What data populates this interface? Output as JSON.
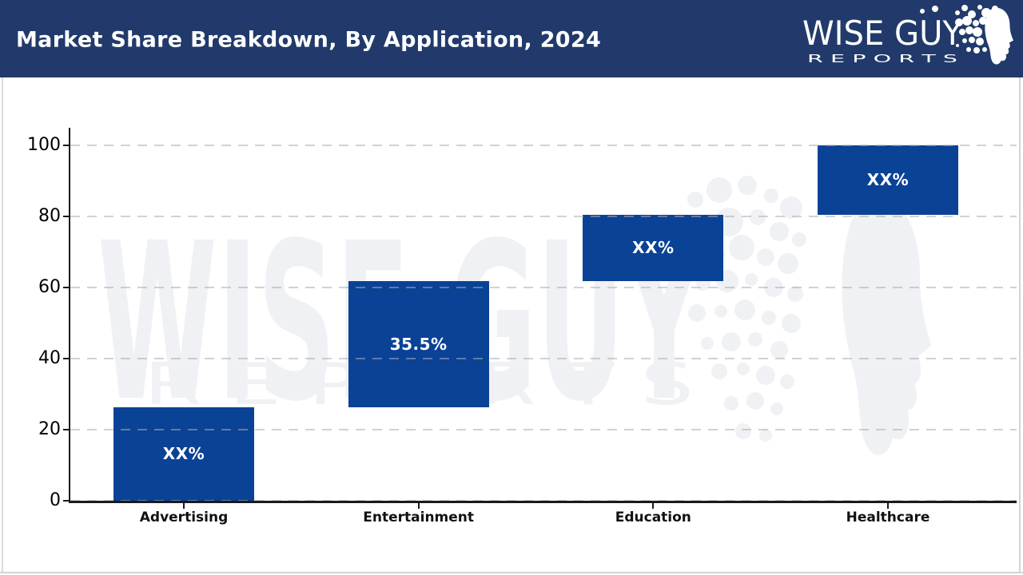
{
  "header": {
    "title": "Market Share Breakdown, By Application, 2024"
  },
  "logo": {
    "line1": "WISE GUY",
    "line2": "R E P O R T S"
  },
  "watermark": {
    "line1": "WISE GUY",
    "line2": "R E P O R T S"
  },
  "chart_data": {
    "type": "bar",
    "subtype": "waterfall",
    "title": "Market Share Breakdown, By Application, 2024",
    "categories": [
      "Advertising",
      "Entertainment",
      "Education",
      "Healthcare"
    ],
    "bars": [
      {
        "category": "Advertising",
        "start": 0,
        "end": 26.3,
        "label": "XX%"
      },
      {
        "category": "Entertainment",
        "start": 26.3,
        "end": 61.8,
        "label": "35.5%"
      },
      {
        "category": "Education",
        "start": 61.8,
        "end": 80.5,
        "label": "XX%"
      },
      {
        "category": "Healthcare",
        "start": 80.5,
        "end": 100,
        "label": "XX%"
      }
    ],
    "yticks": [
      0,
      20,
      40,
      60,
      80,
      100
    ],
    "ylim": [
      0,
      106
    ],
    "grid": "dashed horizontal, drawn over bars",
    "legend": "none"
  },
  "colors": {
    "header_bg": "#213a6b",
    "bar": "#0a4296",
    "axis": "#1a1a1a",
    "watermark": "#f0f1f4",
    "frame_border": "#d4d4d4"
  }
}
